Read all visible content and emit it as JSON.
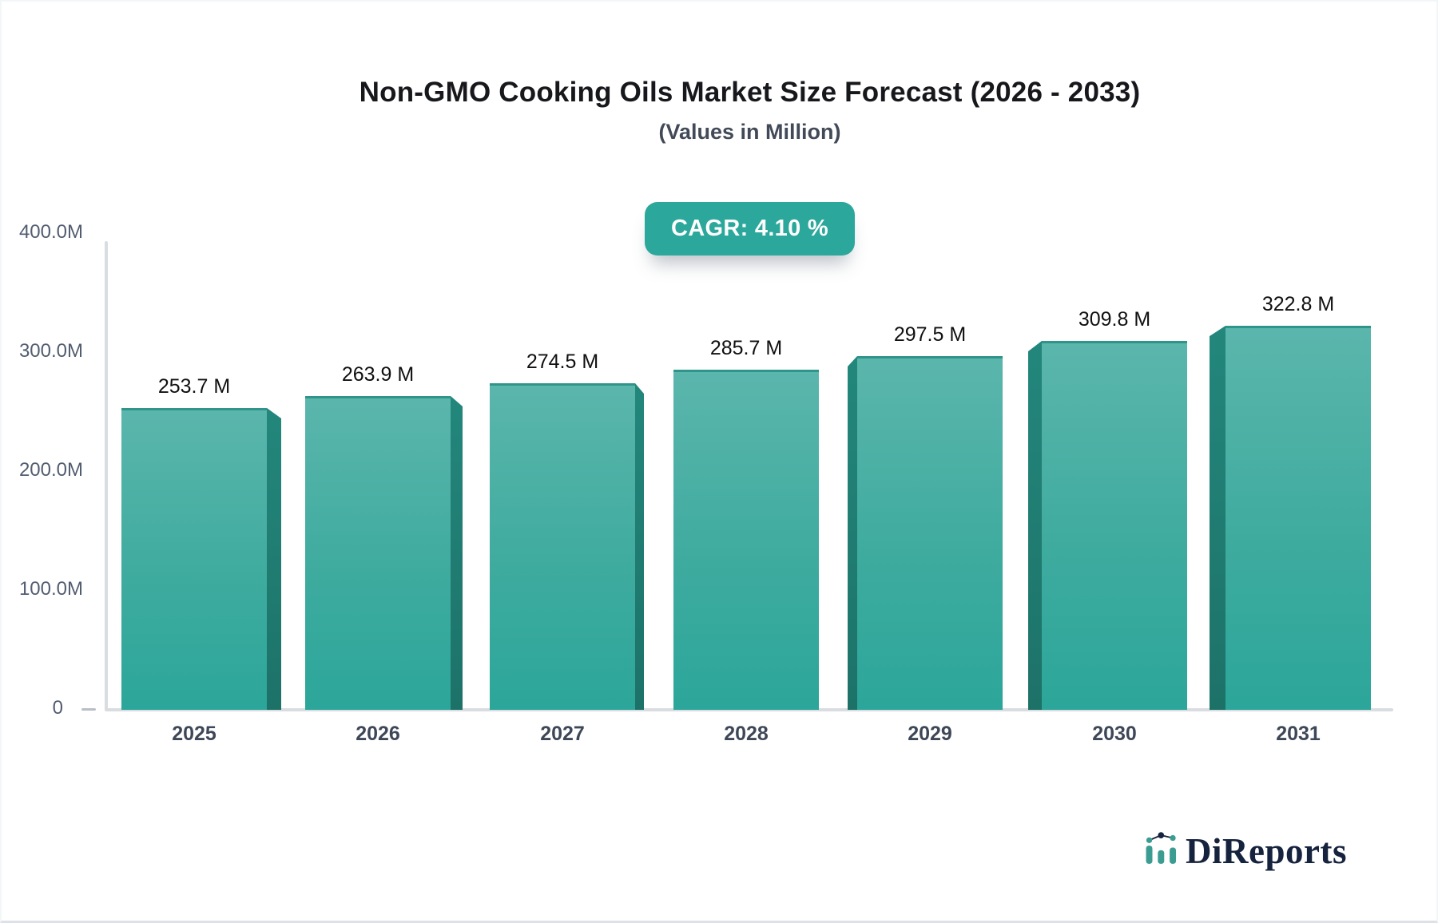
{
  "header": {
    "title": "Non-GMO Cooking Oils Market Size Forecast (2026 - 2033)",
    "subtitle": "(Values in Million)",
    "cagr_badge": "CAGR: 4.10 %"
  },
  "chart_data": {
    "type": "bar",
    "title": "Non-GMO Cooking Oils Market Size Forecast (2026 - 2033)",
    "subtitle": "(Values in Million)",
    "unit": "Million",
    "categories": [
      "2025",
      "2026",
      "2027",
      "2028",
      "2029",
      "2030",
      "2031"
    ],
    "values": [
      253.7,
      263.9,
      274.5,
      285.7,
      297.5,
      309.8,
      322.8
    ],
    "bar_labels": [
      "253.7 M",
      "263.9 M",
      "274.5 M",
      "285.7 M",
      "297.5 M",
      "309.8 M",
      "322.8 M"
    ],
    "ylim": [
      0,
      400
    ],
    "yticks": [
      {
        "value": 400,
        "label": "400.0M"
      },
      {
        "value": 300,
        "label": "300.0M"
      },
      {
        "value": 200,
        "label": "200.0M"
      },
      {
        "value": 100,
        "label": "100.0M"
      },
      {
        "value": 0,
        "label": "0"
      }
    ],
    "grid": false,
    "legend": false,
    "cagr": "4.10 %",
    "bar_color_top": "#5bb6ac",
    "bar_color_bottom": "#2ca69a",
    "bar_side_color": "#1d7268",
    "axis_color": "#d9dce1"
  },
  "logo": {
    "brand": "DiReports",
    "icon": "mini-bar-line-chart-icon",
    "teal": "#3b9c92",
    "navy": "#16233e"
  }
}
